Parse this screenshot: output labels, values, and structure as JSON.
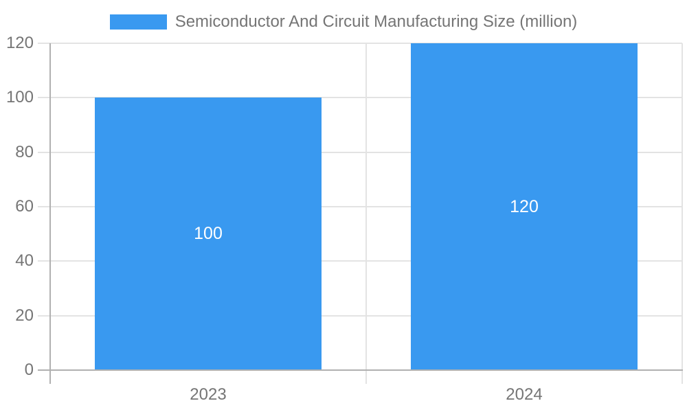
{
  "chart_data": {
    "type": "bar",
    "title": "Semiconductor And Circuit Manufacturing Size (million)",
    "categories": [
      "2023",
      "2024"
    ],
    "values": [
      100,
      120
    ],
    "value_labels": [
      "100",
      "120"
    ],
    "series": [
      {
        "name": "Semiconductor And Circuit Manufacturing Size (million)",
        "values": [
          100,
          120
        ]
      }
    ],
    "xlabel": "",
    "ylabel": "",
    "ylim": [
      0,
      120
    ],
    "yticks": [
      0,
      20,
      40,
      60,
      80,
      100,
      120
    ],
    "grid": true,
    "legend_position": "top",
    "colors": {
      "bar": "#3999F0",
      "grid_line": "#E3E3E3",
      "axis_line": "#B0B0B0",
      "tick_label": "#757575",
      "value_label": "#FFFFFF",
      "background": "#FFFFFF"
    }
  }
}
